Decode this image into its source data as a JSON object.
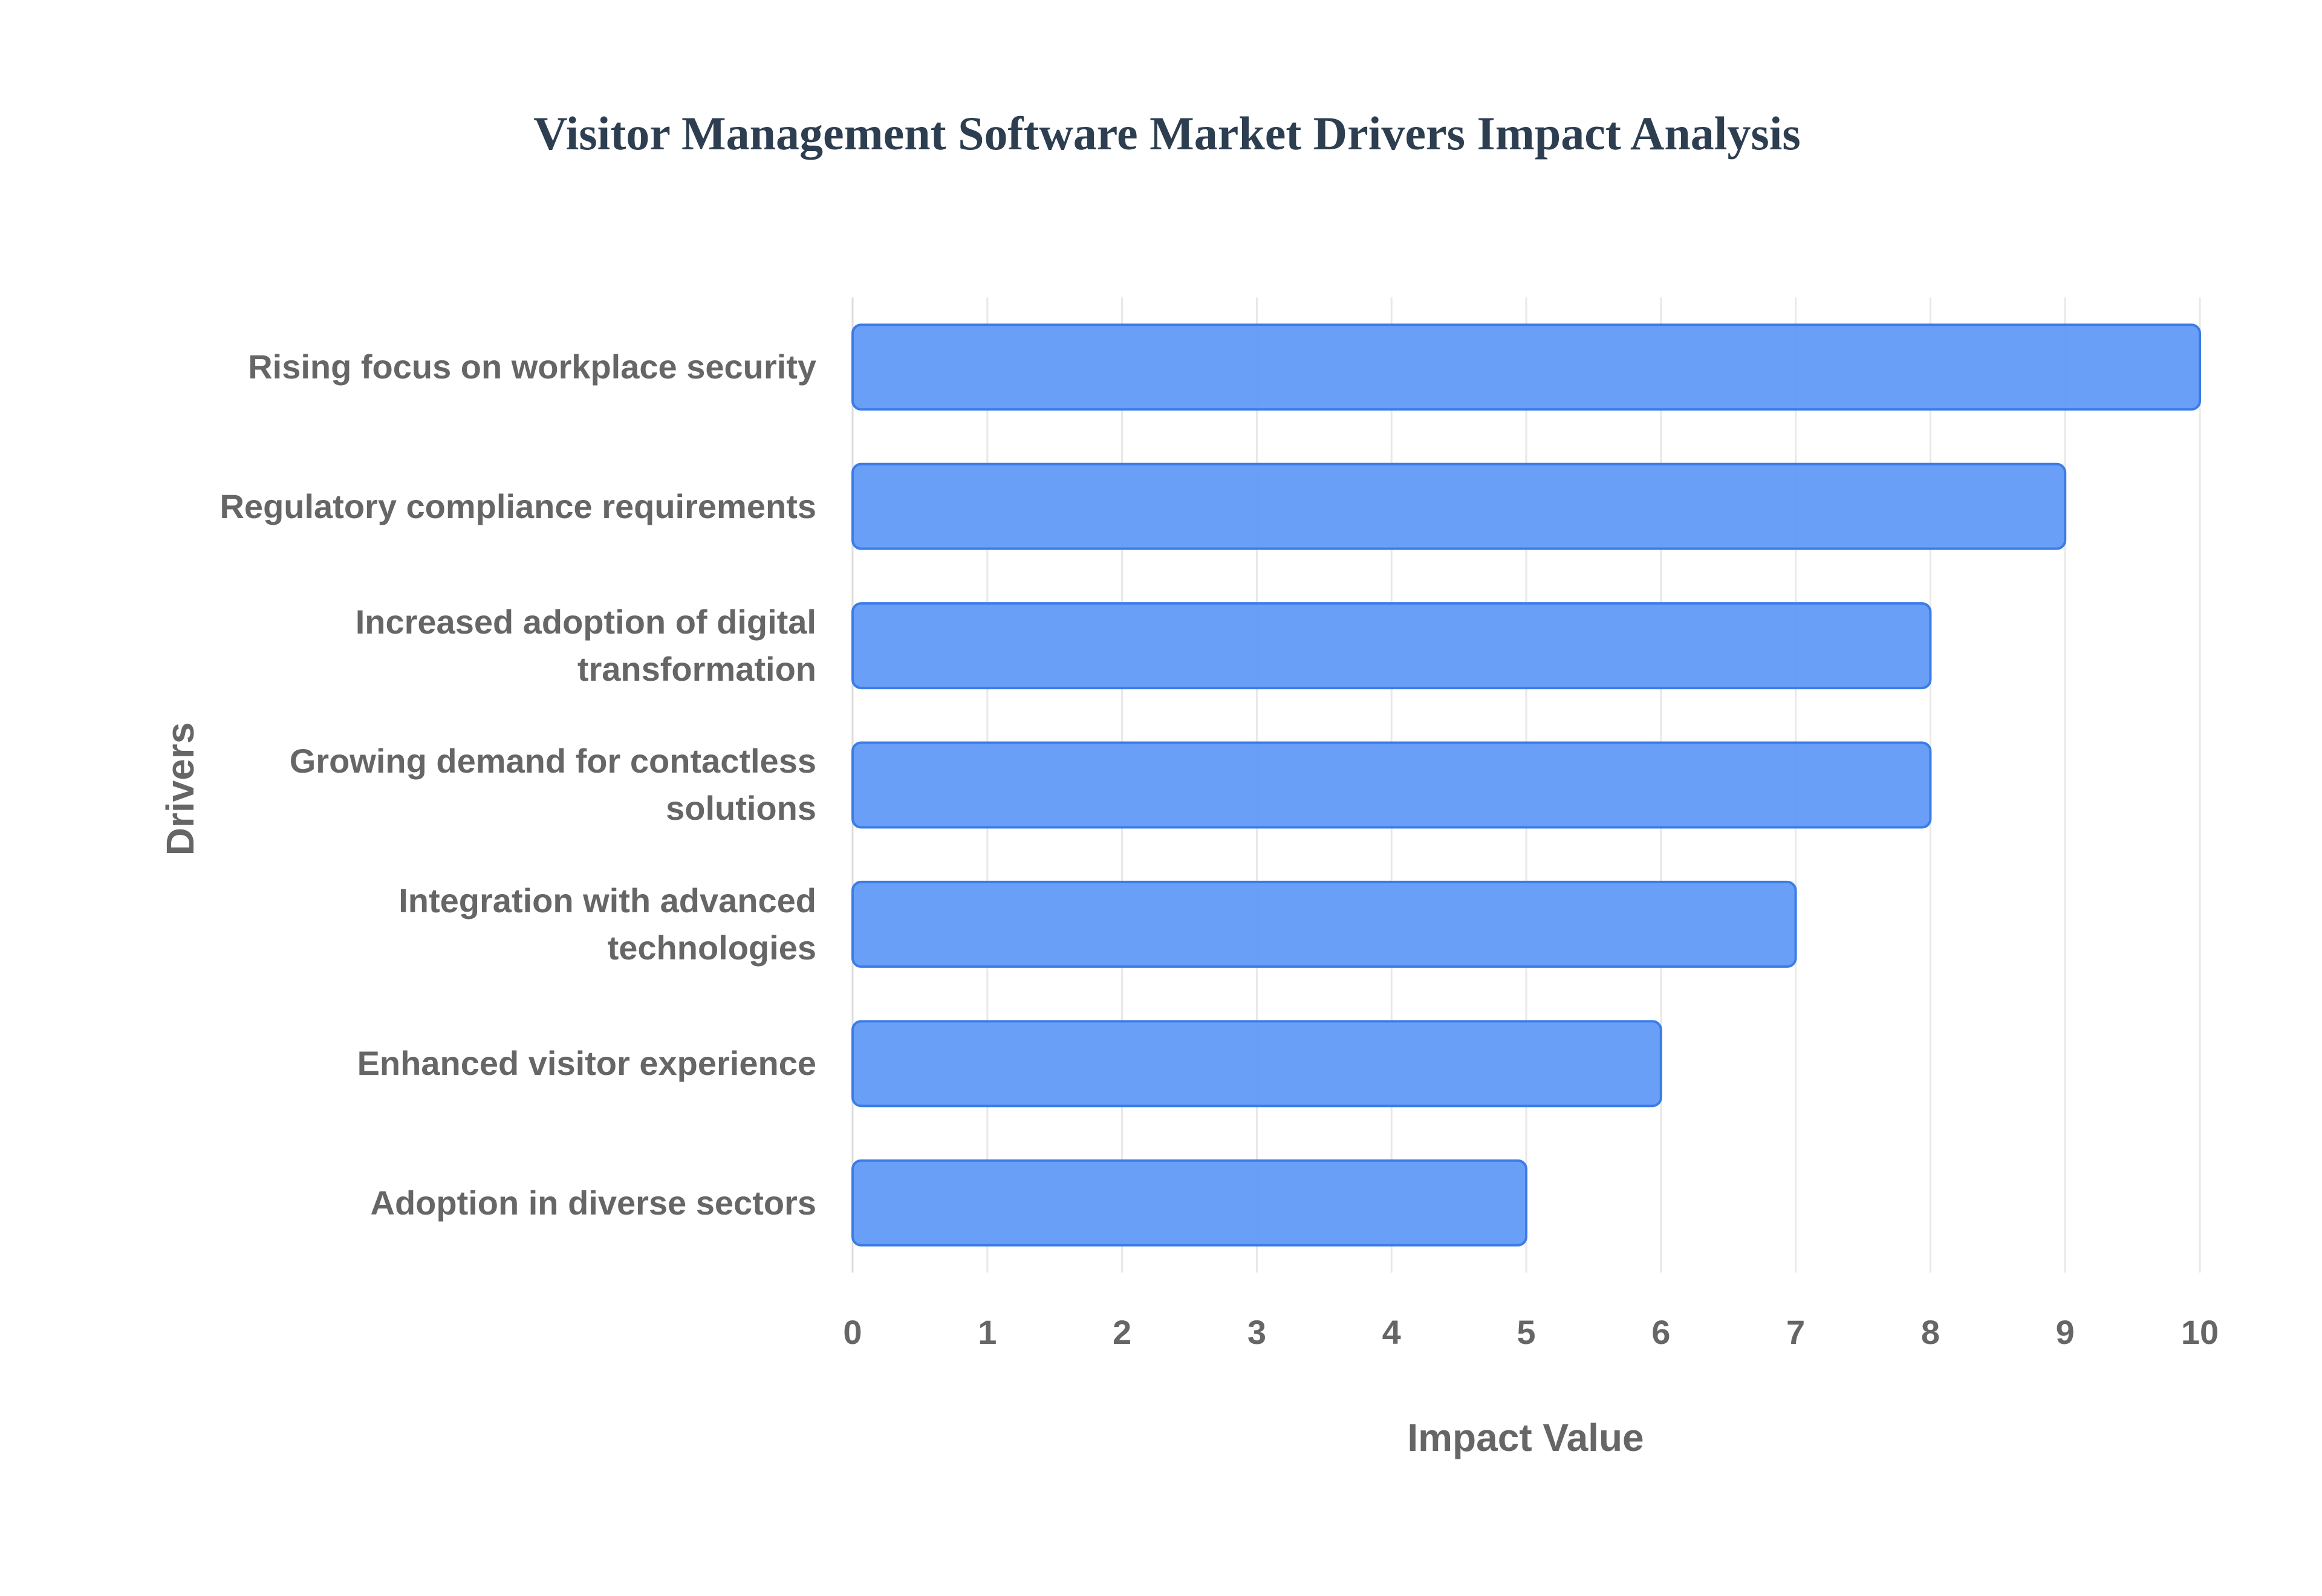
{
  "chart_data": {
    "type": "bar",
    "orientation": "horizontal",
    "title": "Visitor Management Software Market Drivers Impact Analysis",
    "x_label": "Impact Value",
    "y_label": "Drivers",
    "categories": [
      "Rising focus on workplace security",
      "Regulatory compliance requirements",
      "Increased adoption of digital transformation",
      "Growing demand for contactless solutions",
      "Integration with advanced technologies",
      "Enhanced visitor experience",
      "Adoption in diverse sectors"
    ],
    "values": [
      10,
      9,
      8,
      8,
      7,
      6,
      5
    ],
    "color": "#619af5",
    "xlim": [
      0,
      10
    ],
    "xticks": [
      0,
      1,
      2,
      3,
      4,
      5,
      6,
      7,
      8,
      9,
      10
    ],
    "grid": true
  }
}
